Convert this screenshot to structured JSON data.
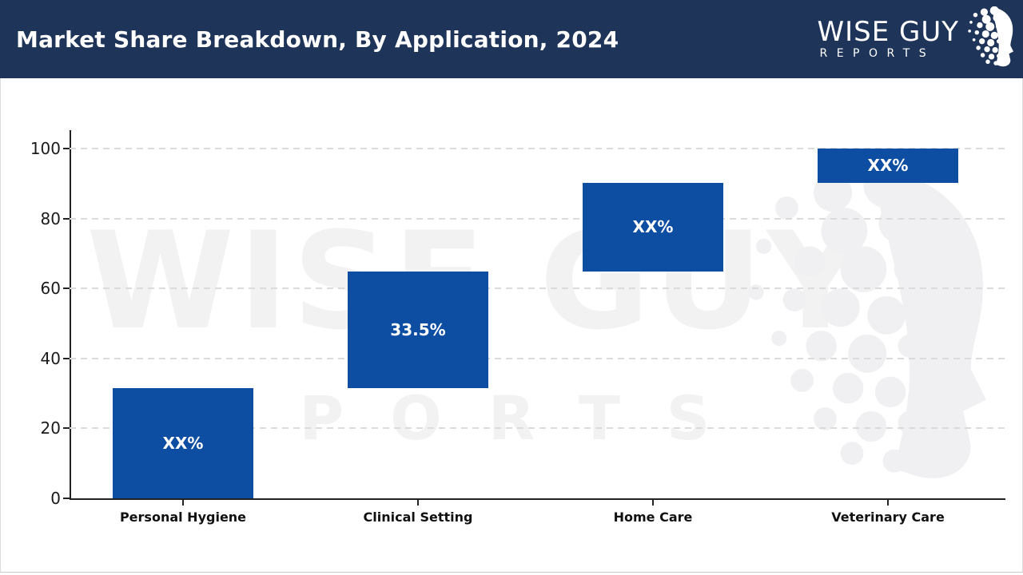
{
  "header": {
    "title": "Market Share Breakdown, By Application, 2024",
    "bg_color": "#1f3459",
    "logo": {
      "line1": "WISE GUY",
      "line2": "REPORTS"
    }
  },
  "watermark": {
    "line1": "WISE GUY",
    "line2": "REPORTS"
  },
  "chart_data": {
    "type": "bar",
    "subtype": "waterfall",
    "title": "Market Share Breakdown, By Application, 2024",
    "xlabel": "",
    "ylabel": "",
    "categories": [
      "Personal Hygiene",
      "Clinical Setting",
      "Home Care",
      "Veterinary Care"
    ],
    "segments": [
      {
        "category": "Personal Hygiene",
        "start": 0,
        "end": 31.4,
        "value": 31.4,
        "label": "XX%"
      },
      {
        "category": "Clinical Setting",
        "start": 31.4,
        "end": 64.9,
        "value": 33.5,
        "label": "33.5%"
      },
      {
        "category": "Home Care",
        "start": 64.9,
        "end": 90.2,
        "value": 25.3,
        "label": "XX%"
      },
      {
        "category": "Veterinary Care",
        "start": 90.2,
        "end": 100,
        "value": 9.8,
        "label": "XX%"
      }
    ],
    "ylim": [
      0,
      100
    ],
    "yticks": [
      0,
      20,
      40,
      60,
      80,
      100
    ],
    "grid": "horizontal-dashed",
    "legend": "none",
    "bar_color": "#0d4da2",
    "label_color": "#ffffff",
    "grid_color": "#dbdbdb",
    "axis_color": "#222222"
  }
}
